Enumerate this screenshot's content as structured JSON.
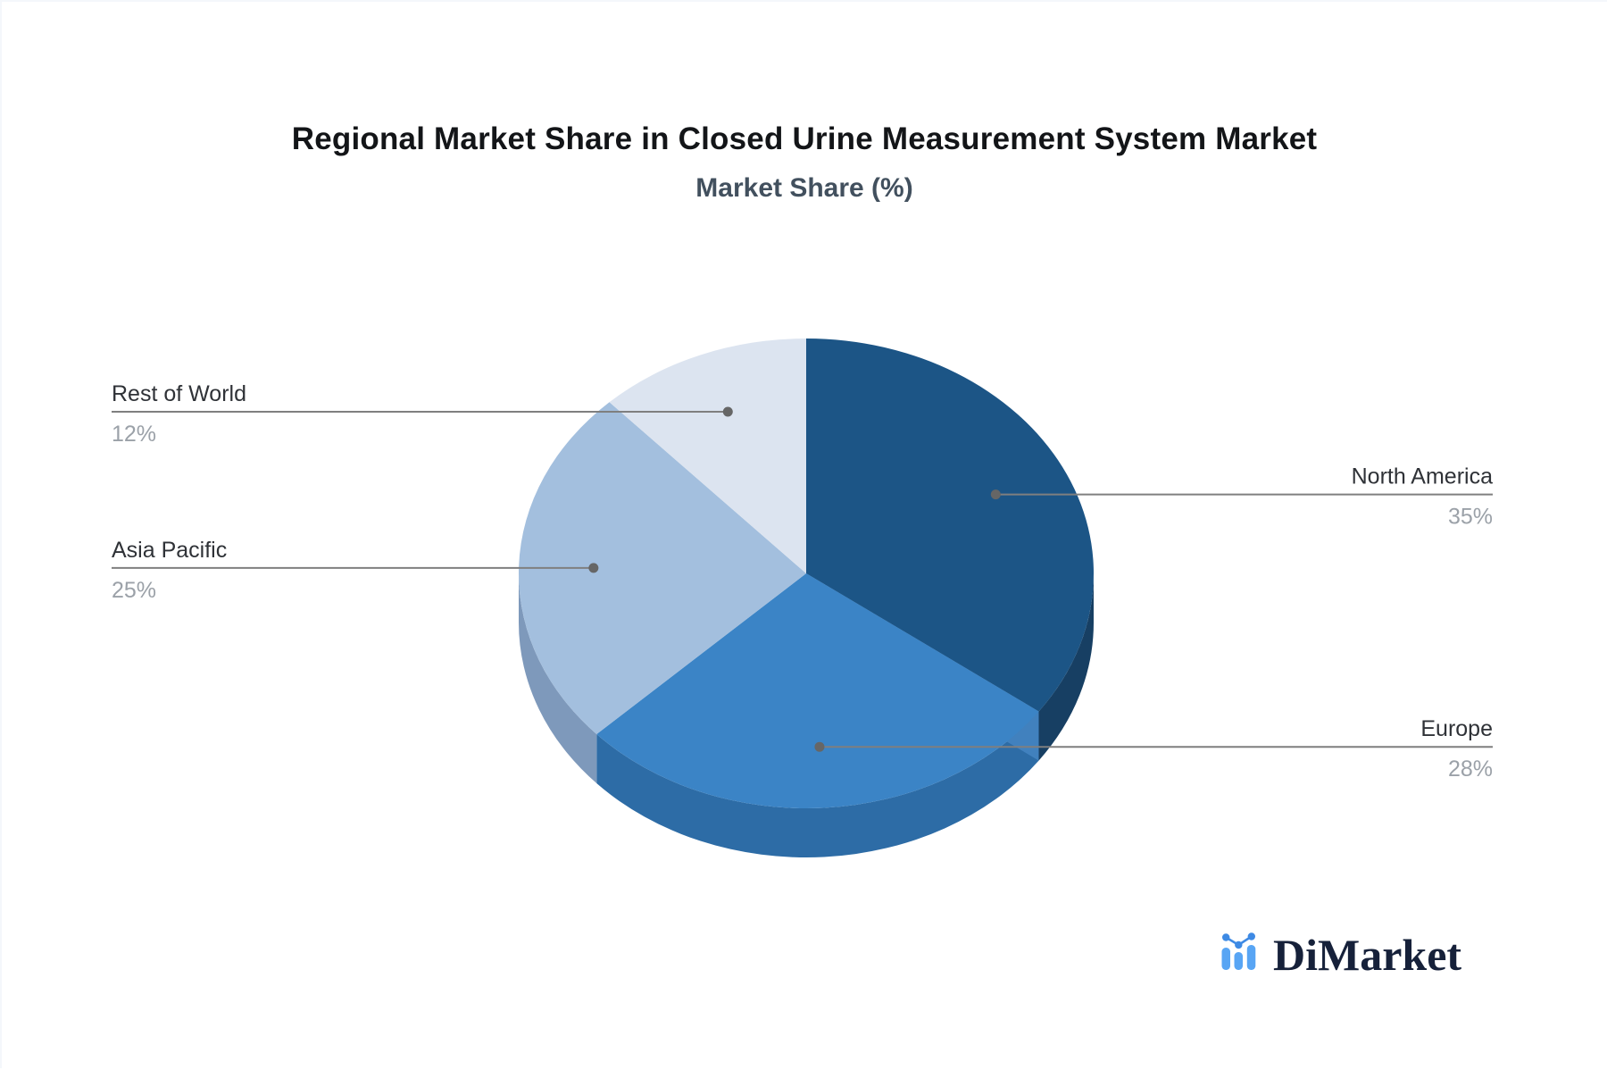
{
  "header": {
    "title": "Regional Market Share in Closed Urine Measurement System Market",
    "subtitle": "Market Share (%)"
  },
  "chart_data": {
    "type": "pie",
    "style": "3d",
    "title": "Regional Market Share in Closed Urine Measurement System Market",
    "subtitle": "Market Share (%)",
    "unit": "%",
    "start_angle_deg": 0,
    "direction": "clockwise",
    "legend": "none",
    "slices": [
      {
        "label": "North America",
        "value": 35,
        "value_label": "35%",
        "color": "#1C5586",
        "side_color": "#173F63",
        "label_side": "right"
      },
      {
        "label": "Europe",
        "value": 28,
        "value_label": "28%",
        "color": "#3B84C6",
        "side_color": "#2D6CA6",
        "label_side": "right"
      },
      {
        "label": "Asia Pacific",
        "value": 25,
        "value_label": "25%",
        "color": "#A3BFDE",
        "side_color": "#7E99BB",
        "label_side": "left"
      },
      {
        "label": "Rest of World",
        "value": 12,
        "value_label": "12%",
        "color": "#DCE4F0",
        "side_color": "#B9C6D9",
        "label_side": "left"
      }
    ],
    "cut_face_color": "#4181BE",
    "leader": {
      "line_color": "#7F7F7F",
      "dot_color": "#666666"
    },
    "label_color": "#2F3237",
    "value_color": "#9BA1A8"
  },
  "branding": {
    "logo_text": "DiMarket",
    "logo_icon": "bar-line-chart-icon",
    "logo_text_color": "#16213A",
    "logo_bar_color": "#58A5F4",
    "logo_line_color": "#3E8AE4"
  }
}
